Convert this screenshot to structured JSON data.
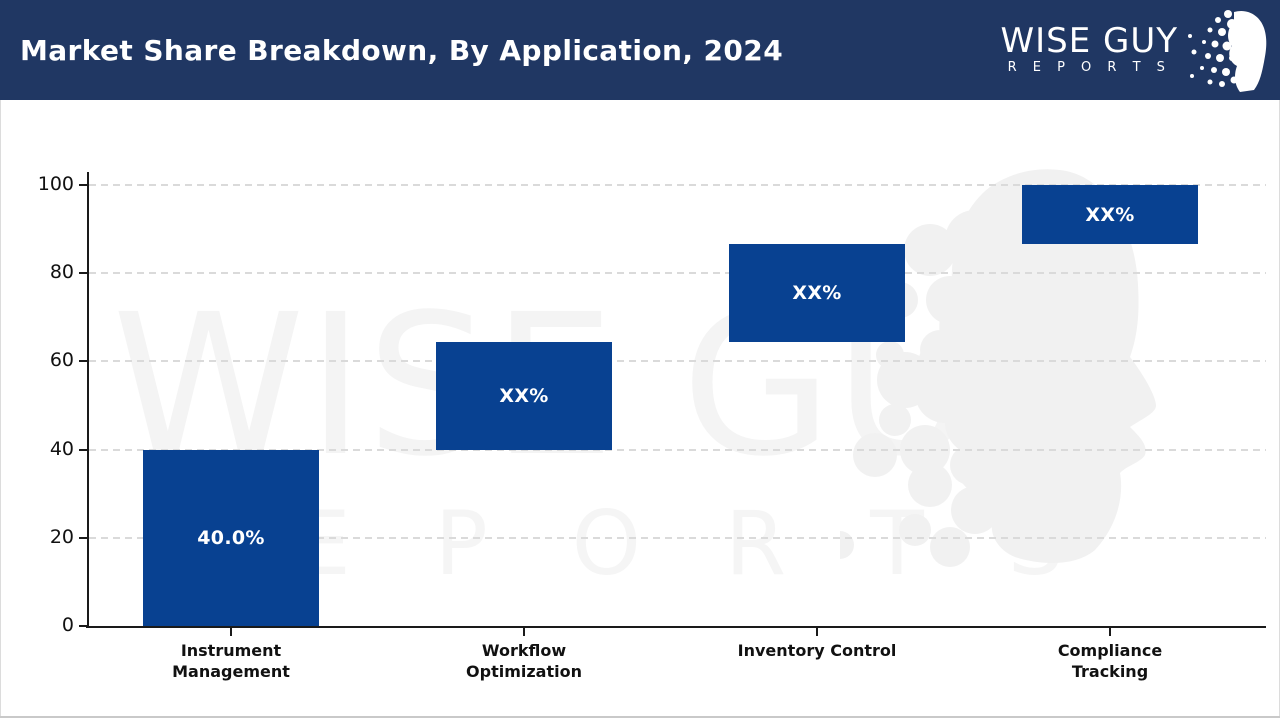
{
  "header": {
    "title": "Market Share Breakdown, By Application, 2024",
    "background": "#203763",
    "logo": {
      "line1": "WISE GUY",
      "line2": "R E P O R T S"
    }
  },
  "watermark": {
    "line1": "WISE GUY",
    "line2": "R E P O R T S"
  },
  "chart_data": {
    "type": "bar",
    "subtype": "waterfall",
    "title": "Market Share Breakdown, By Application, 2024",
    "categories": [
      "Instrument\nManagement",
      "Workflow\nOptimization",
      "Inventory Control",
      "Compliance\nTracking"
    ],
    "segments": [
      {
        "category": "Instrument Management",
        "start": 0,
        "end": 40,
        "label": "40.0%"
      },
      {
        "category": "Workflow Optimization",
        "start": 40,
        "end": 64.4,
        "label": "XX%"
      },
      {
        "category": "Inventory Control",
        "start": 64.4,
        "end": 86.6,
        "label": "XX%"
      },
      {
        "category": "Compliance Tracking",
        "start": 86.6,
        "end": 100,
        "label": "XX%"
      }
    ],
    "yticks": [
      0,
      20,
      40,
      60,
      80,
      100
    ],
    "ylim": [
      0,
      100
    ],
    "xlabel": "",
    "ylabel": "",
    "grid": "dashed-horizontal",
    "legend": "none",
    "bar_color": "#084191",
    "bar_label_color": "#ffffff"
  }
}
